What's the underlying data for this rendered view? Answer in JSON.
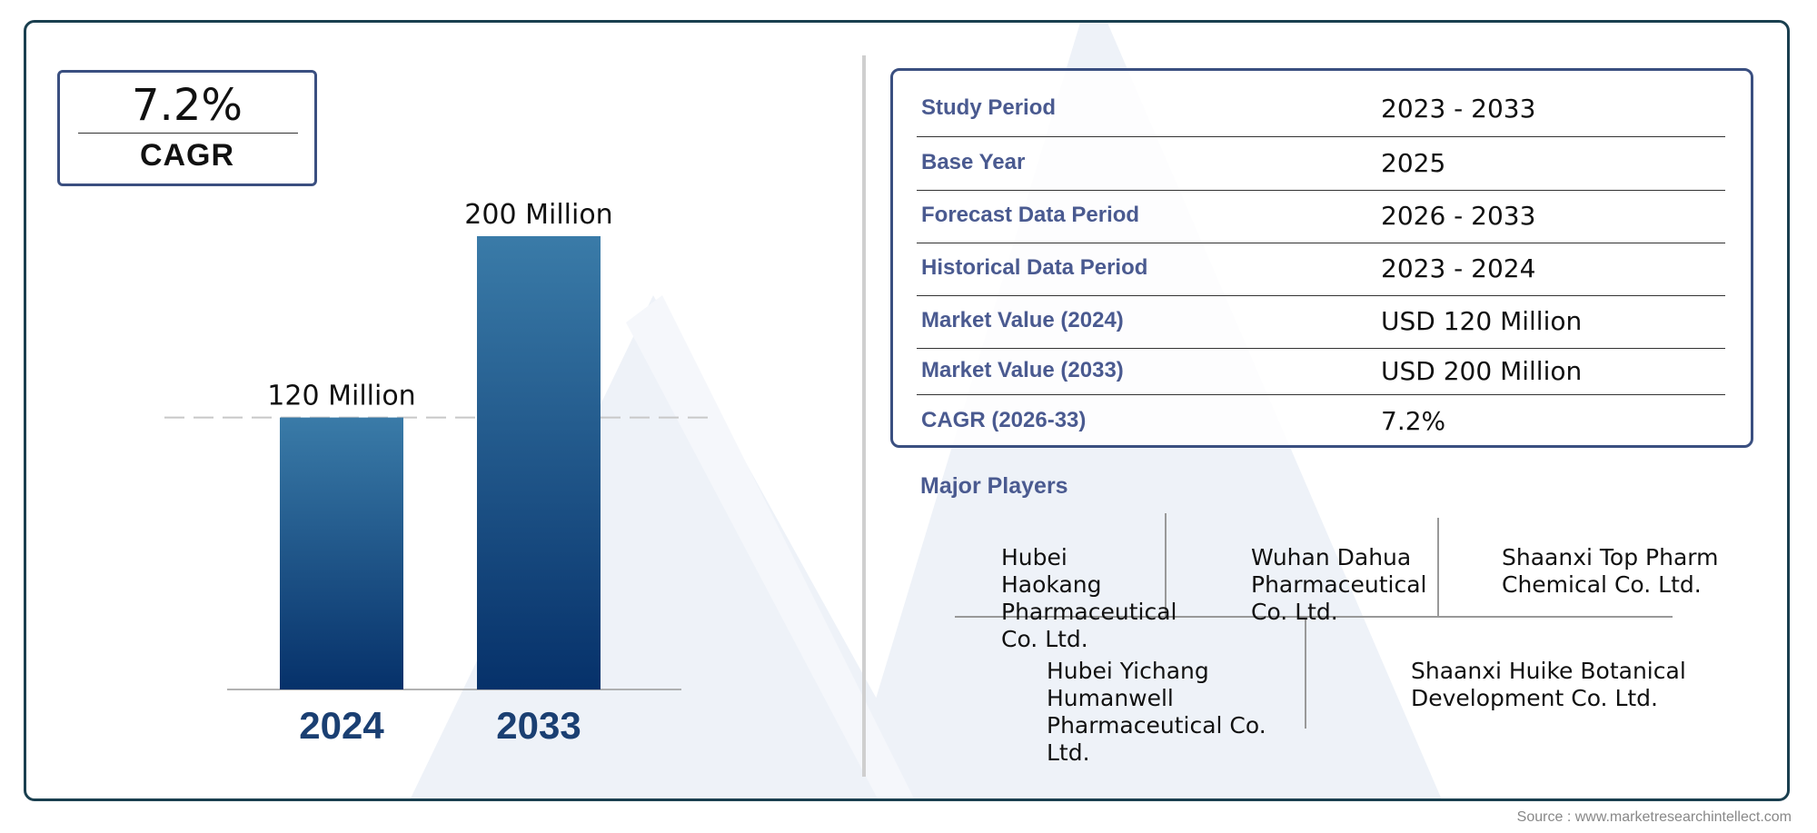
{
  "cagr_box": {
    "value": "7.2%",
    "label": "CAGR"
  },
  "chart_data": {
    "type": "bar",
    "categories": [
      "2024",
      "2033"
    ],
    "values": [
      120,
      200
    ],
    "data_labels": [
      "120 Million",
      "200 Million"
    ],
    "title": "",
    "xlabel": "",
    "ylabel": "",
    "ylim": [
      0,
      200
    ],
    "reference_line": {
      "value": 120,
      "style": "dashed"
    },
    "bar_gradient": [
      "#3a7ba8",
      "#06316a"
    ]
  },
  "info_table": {
    "rows": [
      {
        "label": "Study Period",
        "value": "2023 - 2033"
      },
      {
        "label": "Base Year",
        "value": "2025"
      },
      {
        "label": "Forecast Data Period",
        "value": "2026 - 2033"
      },
      {
        "label": "Historical Data Period",
        "value": "2023 - 2024"
      },
      {
        "label": "Market Value (2024)",
        "value": "USD 120 Million"
      },
      {
        "label": "Market Value (2033)",
        "value": "USD 200 Million"
      },
      {
        "label": "CAGR (2026-33)",
        "value": "7.2%"
      }
    ]
  },
  "players": {
    "title": "Major Players",
    "items": [
      "Hubei Haokang Pharmaceutical Co. Ltd.",
      "Wuhan Dahua Pharmaceutical Co. Ltd.",
      "Shaanxi Top Pharm Chemical Co. Ltd.",
      "Hubei Yichang Humanwell Pharmaceutical Co. Ltd.",
      "Shaanxi Huike Botanical Development Co. Ltd."
    ]
  },
  "source": "Source : www.marketresearchintellect.com",
  "colors": {
    "frame": "#1a3f4f",
    "accent_text": "#4a5a90",
    "year_label": "#1a3f72",
    "watermark": "#eef2f8"
  }
}
